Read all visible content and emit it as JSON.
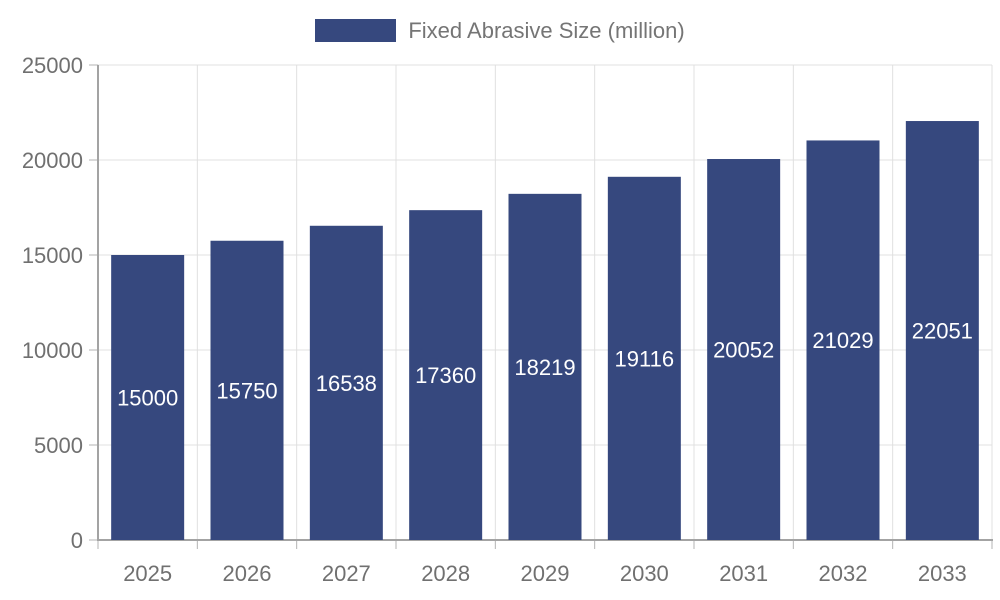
{
  "chart_data": {
    "type": "bar",
    "title": "",
    "legend_position": "top",
    "legend_entries": [
      "Fixed Abrasive Size (million)"
    ],
    "categories": [
      "2025",
      "2026",
      "2027",
      "2028",
      "2029",
      "2030",
      "2031",
      "2032",
      "2033"
    ],
    "series": [
      {
        "name": "Fixed Abrasive Size (million)",
        "values": [
          15000,
          15750,
          16538,
          17360,
          18219,
          19116,
          20052,
          21029,
          22051
        ]
      }
    ],
    "xlabel": "",
    "ylabel": "",
    "ylim": [
      0,
      25000
    ],
    "yticks": [
      0,
      5000,
      10000,
      15000,
      20000,
      25000
    ],
    "grid": true,
    "value_labels_shown": true,
    "colors": {
      "bar": "#36487e",
      "grid_line": "#e0e0e0",
      "axis_line": "#a3a3a3",
      "tick_mark": "#b3b3b3",
      "axis_label": "#707070",
      "legend_text": "#757575",
      "value_label": "#ffffff",
      "background": "#ffffff"
    }
  }
}
